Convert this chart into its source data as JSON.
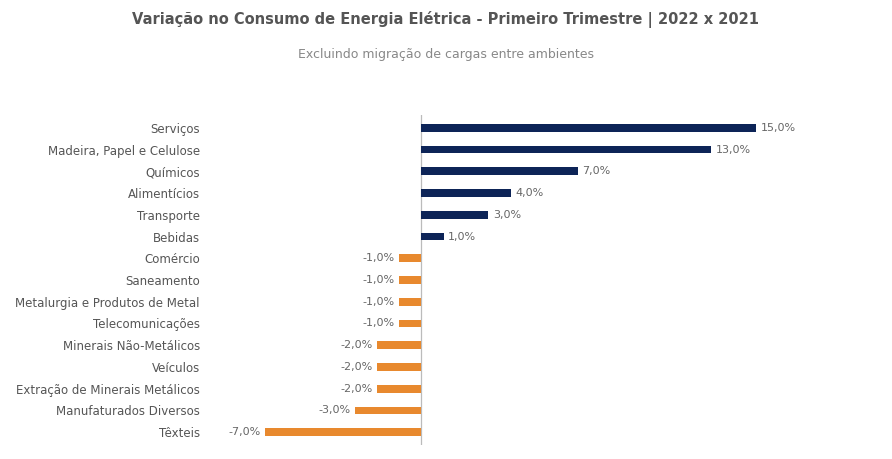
{
  "title": "Variação no Consumo de Energia Elétrica - Primeiro Trimestre | 2022 x 2021",
  "subtitle": "Excluindo migração de cargas entre ambientes",
  "categories": [
    "Têxteis",
    "Manufaturados Diversos",
    "Extração de Minerais Metálicos",
    "Veículos",
    "Minerais Não-Metálicos",
    "Telecomunicações",
    "Metalurgia e Produtos de Metal",
    "Saneamento",
    "Comércio",
    "Bebidas",
    "Transporte",
    "Alimentícios",
    "Químicos",
    "Madeira, Papel e Celulose",
    "Serviços"
  ],
  "values": [
    -7.0,
    -3.0,
    -2.0,
    -2.0,
    -2.0,
    -1.0,
    -1.0,
    -1.0,
    -1.0,
    1.0,
    3.0,
    4.0,
    7.0,
    13.0,
    15.0
  ],
  "positive_color": "#0d2457",
  "negative_color": "#e8892e",
  "background_color": "#ffffff",
  "title_color": "#555555",
  "subtitle_color": "#888888",
  "label_color": "#555555",
  "value_color": "#666666",
  "bar_height": 0.35,
  "xlim": [
    -9.5,
    18.5
  ],
  "title_fontsize": 10.5,
  "subtitle_fontsize": 9,
  "label_fontsize": 8.5,
  "value_fontsize": 8
}
